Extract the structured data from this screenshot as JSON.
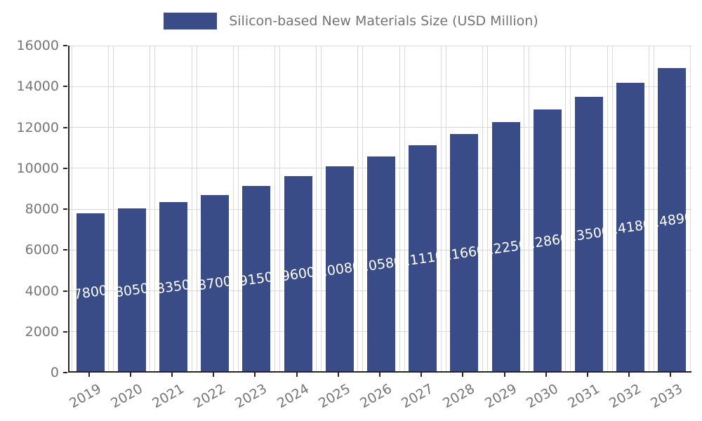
{
  "legend": {
    "label": "Silicon-based New Materials Size (USD Million)"
  },
  "colors": {
    "bar": "#3a4c87",
    "grid": "#d9d9d9",
    "axis": "#262626",
    "tick_text": "#757575",
    "legend_text": "#737373",
    "bar_label_text": "#ffffff"
  },
  "chart_data": {
    "type": "bar",
    "title": "Silicon-based New Materials Size (USD Million)",
    "categories": [
      "2019",
      "2020",
      "2021",
      "2022",
      "2023",
      "2024",
      "2025",
      "2026",
      "2027",
      "2028",
      "2029",
      "2030",
      "2031",
      "2032",
      "2033"
    ],
    "values": [
      7800,
      8050,
      8350,
      8700,
      9150,
      9600,
      10080,
      10580,
      11110,
      11660,
      12250,
      12860,
      13500,
      14180,
      14890
    ],
    "xlabel": "",
    "ylabel": "",
    "ylim": [
      0,
      16000
    ],
    "ytick_step": 2000,
    "ytick_labels": [
      "0",
      "2000",
      "4000",
      "6000",
      "8000",
      "10000",
      "12000",
      "14000",
      "16000"
    ],
    "grid": true,
    "legend_position": "top-center",
    "bar_labels_shown": true,
    "bar_label_rotation_deg": -8,
    "xtick_rotation_deg": -30
  }
}
